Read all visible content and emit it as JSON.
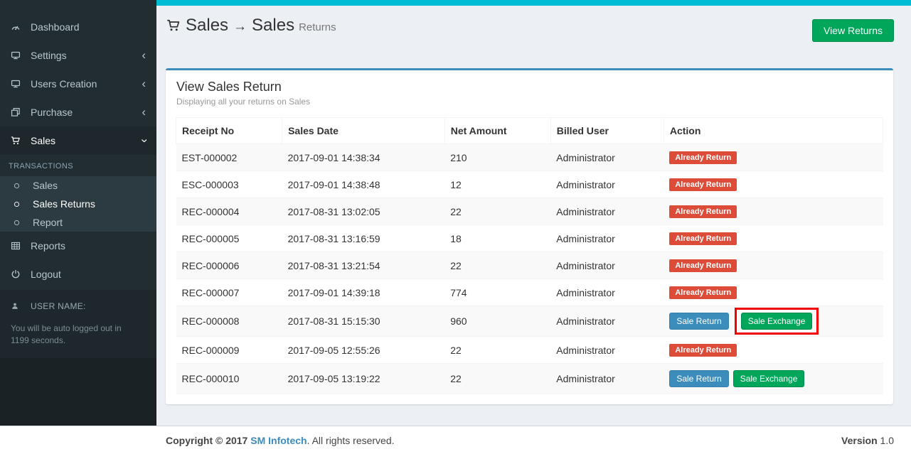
{
  "colors": {
    "topbar": "#00bcd4",
    "accent_blue": "#3c8dbc",
    "green": "#00a65a",
    "red_badge": "#dd4b39",
    "annotation_red": "#f40000"
  },
  "sidebar": {
    "menu": [
      {
        "type": "item",
        "label": "Dashboard",
        "icon": "dashboard-icon",
        "chevron": "",
        "active": false
      },
      {
        "type": "item",
        "label": "Settings",
        "icon": "monitor-icon",
        "chevron": "left",
        "active": false
      },
      {
        "type": "item",
        "label": "Users Creation",
        "icon": "monitor-icon",
        "chevron": "left",
        "active": false
      },
      {
        "type": "item",
        "label": "Purchase",
        "icon": "copy-icon",
        "chevron": "left",
        "active": false
      },
      {
        "type": "item",
        "label": "Sales",
        "icon": "cart-icon",
        "chevron": "down",
        "active": true
      },
      {
        "type": "header",
        "label": "TRANSACTIONS"
      },
      {
        "type": "subitem",
        "label": "Sales",
        "icon": "circle-icon",
        "active": false
      },
      {
        "type": "subitem",
        "label": "Sales Returns",
        "icon": "circle-icon",
        "active": true
      },
      {
        "type": "subitem",
        "label": "Report",
        "icon": "circle-icon",
        "active": false
      },
      {
        "type": "item",
        "label": "Reports",
        "icon": "table-icon",
        "chevron": "",
        "active": false
      },
      {
        "type": "item",
        "label": "Logout",
        "icon": "power-icon",
        "chevron": "",
        "active": false
      }
    ],
    "user_label": "USER NAME:",
    "logout_notice": "You will be auto logged out in 1199 seconds."
  },
  "header": {
    "title_main": "Sales",
    "title_arrow": "→",
    "title_second": "Sales",
    "title_sub": "Returns",
    "view_returns_button": "View Returns"
  },
  "panel": {
    "title": "View Sales Return",
    "subtitle": "Displaying all your returns on Sales"
  },
  "table": {
    "columns": [
      "Receipt No",
      "Sales Date",
      "Net Amount",
      "Billed User",
      "Action"
    ],
    "action_labels": {
      "already_return": "Already Return",
      "sale_return": "Sale Return",
      "sale_exchange": "Sale Exchange"
    },
    "rows": [
      {
        "receipt_no": "EST-000002",
        "sales_date": "2017-09-01 14:38:34",
        "net_amount": "210",
        "billed_user": "Administrator",
        "actions": [
          "already_return"
        ],
        "highlight": false
      },
      {
        "receipt_no": "ESC-000003",
        "sales_date": "2017-09-01 14:38:48",
        "net_amount": "12",
        "billed_user": "Administrator",
        "actions": [
          "already_return"
        ],
        "highlight": false
      },
      {
        "receipt_no": "REC-000004",
        "sales_date": "2017-08-31 13:02:05",
        "net_amount": "22",
        "billed_user": "Administrator",
        "actions": [
          "already_return"
        ],
        "highlight": false
      },
      {
        "receipt_no": "REC-000005",
        "sales_date": "2017-08-31 13:16:59",
        "net_amount": "18",
        "billed_user": "Administrator",
        "actions": [
          "already_return"
        ],
        "highlight": false
      },
      {
        "receipt_no": "REC-000006",
        "sales_date": "2017-08-31 13:21:54",
        "net_amount": "22",
        "billed_user": "Administrator",
        "actions": [
          "already_return"
        ],
        "highlight": false
      },
      {
        "receipt_no": "REC-000007",
        "sales_date": "2017-09-01 14:39:18",
        "net_amount": "774",
        "billed_user": "Administrator",
        "actions": [
          "already_return"
        ],
        "highlight": false
      },
      {
        "receipt_no": "REC-000008",
        "sales_date": "2017-08-31 15:15:30",
        "net_amount": "960",
        "billed_user": "Administrator",
        "actions": [
          "sale_return",
          "sale_exchange"
        ],
        "highlight": true
      },
      {
        "receipt_no": "REC-000009",
        "sales_date": "2017-09-05 12:55:26",
        "net_amount": "22",
        "billed_user": "Administrator",
        "actions": [
          "already_return"
        ],
        "highlight": false
      },
      {
        "receipt_no": "REC-000010",
        "sales_date": "2017-09-05 13:19:22",
        "net_amount": "22",
        "billed_user": "Administrator",
        "actions": [
          "sale_return",
          "sale_exchange"
        ],
        "highlight": false
      }
    ]
  },
  "footer": {
    "copyright_prefix": "Copyright © 2017",
    "company": "SM Infotech",
    "copyright_suffix": ". All rights reserved.",
    "version_label": "Version",
    "version_number": "1.0"
  }
}
